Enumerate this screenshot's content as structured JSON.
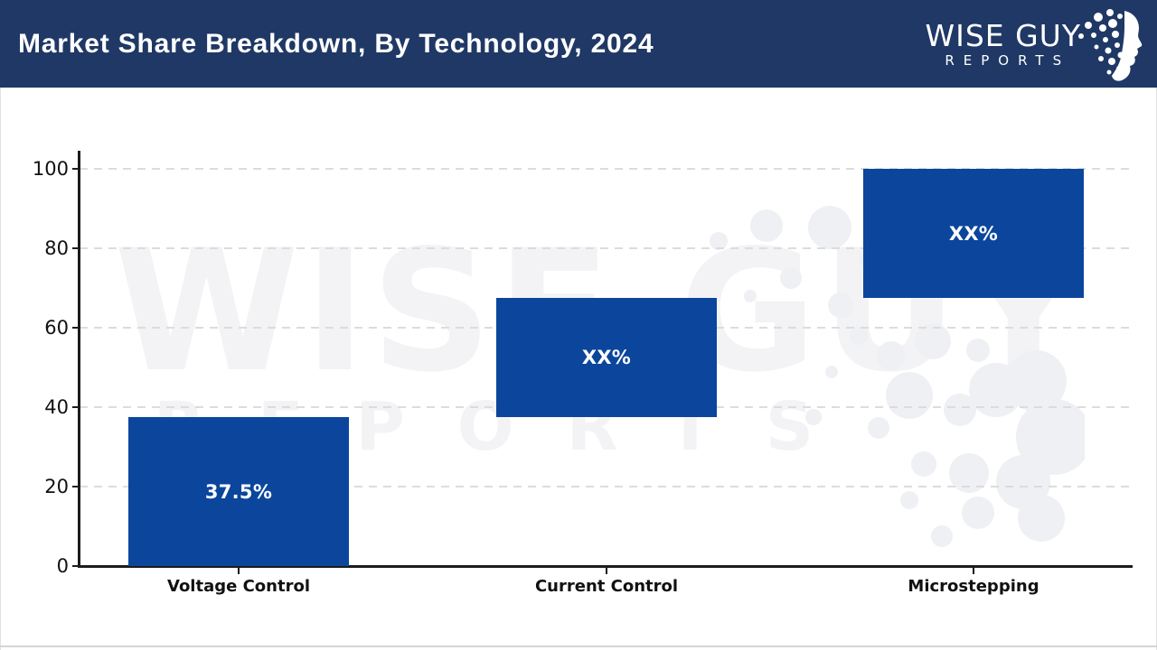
{
  "header": {
    "title": "Market Share Breakdown, By Technology, 2024",
    "logo": {
      "line1": "WISE GUY",
      "line2": "REPORTS"
    }
  },
  "watermark": {
    "line1": "WISE GUY",
    "line2": "REPORTS"
  },
  "colors": {
    "header_bg": "#1f3865",
    "bar": "#0b469c",
    "gridline": "#dcdcdc",
    "axis": "#1c1c1c",
    "watermark": "#f3f3f5",
    "bar_label_text": "#ffffff"
  },
  "chart_data": {
    "type": "bar",
    "subtype": "floating-waterfall",
    "title": "Market Share Breakdown, By Technology, 2024",
    "categories": [
      "Voltage Control",
      "Current Control",
      "Microstepping"
    ],
    "bars": [
      {
        "category": "Voltage Control",
        "start": 0,
        "end": 37.5,
        "label": "37.5%"
      },
      {
        "category": "Current Control",
        "start": 37.5,
        "end": 67.5,
        "label": "XX%"
      },
      {
        "category": "Microstepping",
        "start": 67.5,
        "end": 100,
        "label": "XX%"
      }
    ],
    "yticks": [
      0,
      20,
      40,
      60,
      80,
      100
    ],
    "ylim": [
      0,
      105
    ],
    "xlabel": "",
    "ylabel": "",
    "grid": "dashed-horizontal",
    "legend": "none",
    "bar_color": "#0b469c"
  }
}
